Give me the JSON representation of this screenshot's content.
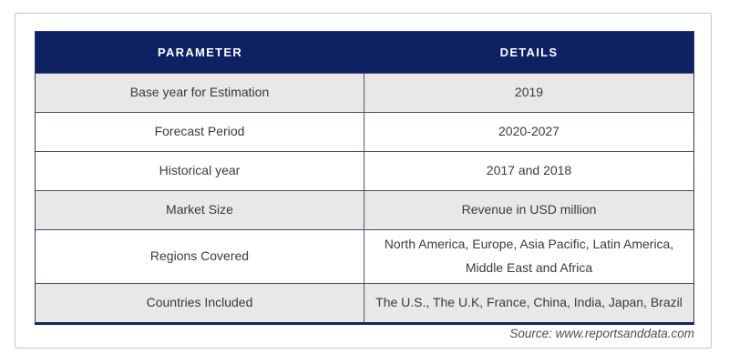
{
  "chart_data": {
    "type": "table",
    "columns": [
      "PARAMETER",
      "DETAILS"
    ],
    "rows": [
      [
        "Base year for Estimation",
        "2019"
      ],
      [
        "Forecast Period",
        "2020-2027"
      ],
      [
        "Historical year",
        "2017 and 2018"
      ],
      [
        "Market Size",
        "Revenue in USD million"
      ],
      [
        "Regions Covered",
        "North America, Europe, Asia Pacific, Latin America, Middle East and Africa"
      ],
      [
        "Countries Included",
        "The U.S., The  U.K, France, China, India, Japan, Brazil"
      ]
    ],
    "source": "Source: www.reportsanddata.com",
    "layout_hints": {
      "row_shading_pattern": [
        "shaded",
        "white",
        "white",
        "shaded",
        "white",
        "shaded"
      ],
      "header_position": "top",
      "column_alignment": "center"
    }
  },
  "colors": {
    "header_bg": "#0d2163",
    "header_text": "#ffffff",
    "shaded_row_bg": "#e8e8e8",
    "plain_row_bg": "#ffffff",
    "body_text": "#3a3a42",
    "table_border": "#2e3c68",
    "frame_border": "#c6c6c6",
    "source_text": "#4c4c55"
  }
}
